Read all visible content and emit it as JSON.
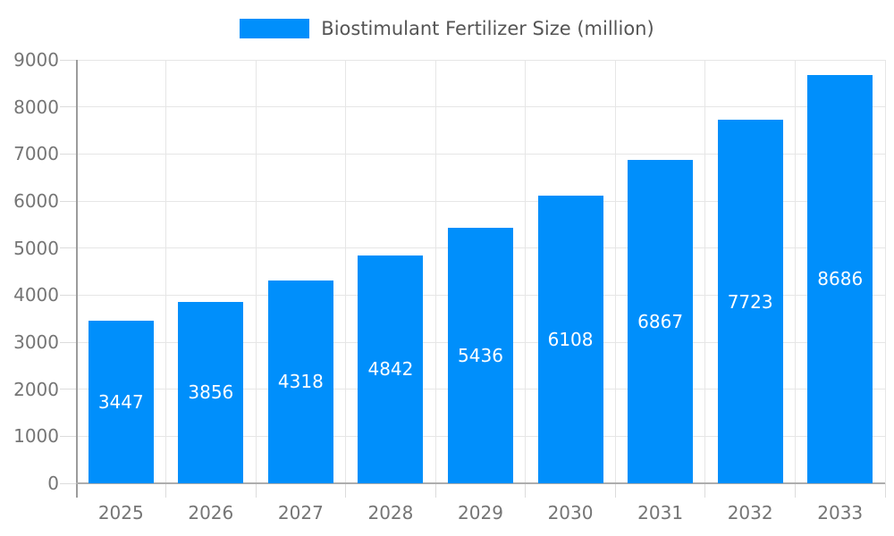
{
  "legend": {
    "label": "Biostimulant Fertilizer Size (million)"
  },
  "chart_data": {
    "type": "bar",
    "title": "Biostimulant Fertilizer Size (million)",
    "categories": [
      "2025",
      "2026",
      "2027",
      "2028",
      "2029",
      "2030",
      "2031",
      "2032",
      "2033"
    ],
    "series": [
      {
        "name": "Biostimulant Fertilizer Size (million)",
        "values": [
          3447,
          3856,
          4318,
          4842,
          5436,
          6108,
          6867,
          7723,
          8686
        ]
      }
    ],
    "value_labels": [
      3447,
      3856,
      4318,
      4842,
      5436,
      6108,
      6867,
      7723,
      8686
    ],
    "xlabel": "",
    "ylabel": "",
    "ylim": [
      0,
      9000
    ],
    "ytick_step": 1000,
    "yticks": [
      0,
      1000,
      2000,
      3000,
      4000,
      5000,
      6000,
      7000,
      8000,
      9000
    ],
    "grid": true,
    "legend_position": "top",
    "colors": {
      "bar": "#008FFB",
      "value_label": "#FFFFFF",
      "axis_label": "#757575",
      "legend_text": "#555555",
      "gridline": "#E6E6E6",
      "axis_line": "#9C9C9C",
      "background": "#FFFFFF"
    }
  }
}
